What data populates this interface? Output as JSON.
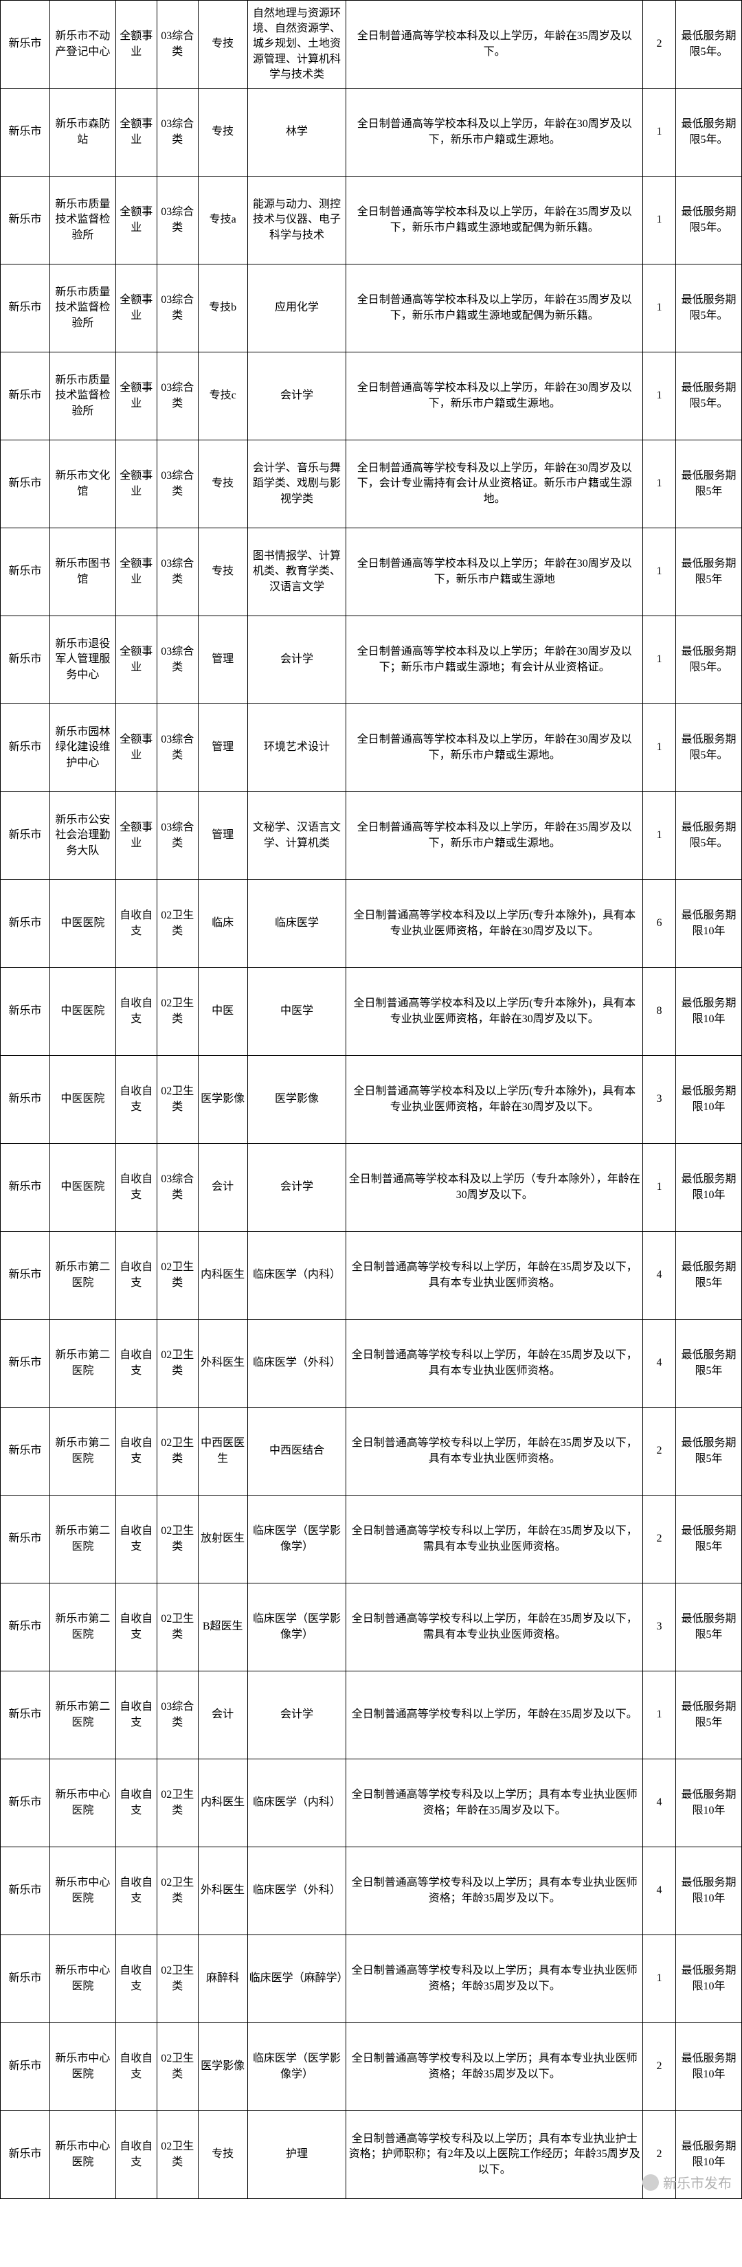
{
  "rows": [
    {
      "city": "新乐市",
      "org": "新乐市不动产登记中心",
      "type": "全额事业",
      "cat": "03综合类",
      "pos": "专技",
      "major": "自然地理与资源环境、自然资源学、城乡规划、土地资源管理、计算机科学与技术类",
      "req": "全日制普通高等学校本科及以上学历，年龄在35周岁及以下。",
      "num": "2",
      "note": "最低服务期限5年。"
    },
    {
      "city": "新乐市",
      "org": "新乐市森防站",
      "type": "全额事业",
      "cat": "03综合类",
      "pos": "专技",
      "major": "林学",
      "req": "全日制普通高等学校本科及以上学历，年龄在30周岁及以下，新乐市户籍或生源地。",
      "num": "1",
      "note": "最低服务期限5年。"
    },
    {
      "city": "新乐市",
      "org": "新乐市质量技术监督检验所",
      "type": "全额事业",
      "cat": "03综合类",
      "pos": "专技a",
      "major": "能源与动力、测控技术与仪器、电子科学与技术",
      "req": "全日制普通高等学校本科及以上学历，年龄在35周岁及以下，新乐市户籍或生源地或配偶为新乐籍。",
      "num": "1",
      "note": "最低服务期限5年。"
    },
    {
      "city": "新乐市",
      "org": "新乐市质量技术监督检验所",
      "type": "全额事业",
      "cat": "03综合类",
      "pos": "专技b",
      "major": "应用化学",
      "req": "全日制普通高等学校本科及以上学历，年龄在35周岁及以下，新乐市户籍或生源地或配偶为新乐籍。",
      "num": "1",
      "note": "最低服务期限5年。"
    },
    {
      "city": "新乐市",
      "org": "新乐市质量技术监督检验所",
      "type": "全额事业",
      "cat": "03综合类",
      "pos": "专技c",
      "major": "会计学",
      "req": "全日制普通高等学校本科及以上学历，年龄在30周岁及以下，新乐市户籍或生源地。",
      "num": "1",
      "note": "最低服务期限5年。"
    },
    {
      "city": "新乐市",
      "org": "新乐市文化馆",
      "type": "全额事业",
      "cat": "03综合类",
      "pos": "专技",
      "major": "会计学、音乐与舞蹈学类、戏剧与影视学类",
      "req": "全日制普通高等学校专科及以上学历，年龄在30周岁及以下，会计专业需持有会计从业资格证。新乐市户籍或生源地。",
      "num": "1",
      "note": "最低服务期限5年"
    },
    {
      "city": "新乐市",
      "org": "新乐市图书馆",
      "type": "全额事业",
      "cat": "03综合类",
      "pos": "专技",
      "major": "图书情报学、计算机类、教育学类、汉语言文学",
      "req": "全日制普通高等学校本科及以上学历；年龄在30周岁及以下，新乐市户籍或生源地",
      "num": "1",
      "note": "最低服务期限5年"
    },
    {
      "city": "新乐市",
      "org": "新乐市退役军人管理服务中心",
      "type": "全额事业",
      "cat": "03综合类",
      "pos": "管理",
      "major": "会计学",
      "req": "全日制普通高等学校本科及以上学历；年龄在30周岁及以下；新乐市户籍或生源地；有会计从业资格证。",
      "num": "1",
      "note": "最低服务期限5年。"
    },
    {
      "city": "新乐市",
      "org": "新乐市园林绿化建设维护中心",
      "type": "全额事业",
      "cat": "03综合类",
      "pos": "管理",
      "major": "环境艺术设计",
      "req": "全日制普通高等学校本科及以上学历，年龄在30周岁及以下，新乐市户籍或生源地。",
      "num": "1",
      "note": "最低服务期限5年。"
    },
    {
      "city": "新乐市",
      "org": "新乐市公安社会治理勤务大队",
      "type": "全额事业",
      "cat": "03综合类",
      "pos": "管理",
      "major": "文秘学、汉语言文学、计算机类",
      "req": "全日制普通高等学校本科及以上学历，年龄在35周岁及以下，新乐市户籍或生源地。",
      "num": "1",
      "note": "最低服务期限5年。"
    },
    {
      "city": "新乐市",
      "org": "中医医院",
      "type": "自收自支",
      "cat": "02卫生类",
      "pos": "临床",
      "major": "临床医学",
      "req": "全日制普通高等学校本科及以上学历(专升本除外)，具有本专业执业医师资格，年龄在30周岁及以下。",
      "num": "6",
      "note": "最低服务期限10年"
    },
    {
      "city": "新乐市",
      "org": "中医医院",
      "type": "自收自支",
      "cat": "02卫生类",
      "pos": "中医",
      "major": "中医学",
      "req": "全日制普通高等学校本科及以上学历(专升本除外)，具有本专业执业医师资格，年龄在30周岁及以下。",
      "num": "8",
      "note": "最低服务期限10年"
    },
    {
      "city": "新乐市",
      "org": "中医医院",
      "type": "自收自支",
      "cat": "02卫生类",
      "pos": "医学影像",
      "major": "医学影像",
      "req": "全日制普通高等学校本科及以上学历(专升本除外)，具有本专业执业医师资格，年龄在30周岁及以下。",
      "num": "3",
      "note": "最低服务期限10年"
    },
    {
      "city": "新乐市",
      "org": "中医医院",
      "type": "自收自支",
      "cat": "03综合类",
      "pos": "会计",
      "major": "会计学",
      "req": "全日制普通高等学校本科及以上学历（专升本除外），年龄在30周岁及以下。",
      "num": "1",
      "note": "最低服务期限10年"
    },
    {
      "city": "新乐市",
      "org": "新乐市第二医院",
      "type": "自收自支",
      "cat": "02卫生类",
      "pos": "内科医生",
      "major": "临床医学（内科）",
      "req": "全日制普通高等学校专科以上学历，年龄在35周岁及以下，具有本专业执业医师资格。",
      "num": "4",
      "note": "最低服务期限5年"
    },
    {
      "city": "新乐市",
      "org": "新乐市第二医院",
      "type": "自收自支",
      "cat": "02卫生类",
      "pos": "外科医生",
      "major": "临床医学（外科）",
      "req": "全日制普通高等学校专科以上学历，年龄在35周岁及以下，具有本专业执业医师资格。",
      "num": "4",
      "note": "最低服务期限5年"
    },
    {
      "city": "新乐市",
      "org": "新乐市第二医院",
      "type": "自收自支",
      "cat": "02卫生类",
      "pos": "中西医医生",
      "major": "中西医结合",
      "req": "全日制普通高等学校专科以上学历，年龄在35周岁及以下，具有本专业执业医师资格。",
      "num": "2",
      "note": "最低服务期限5年"
    },
    {
      "city": "新乐市",
      "org": "新乐市第二医院",
      "type": "自收自支",
      "cat": "02卫生类",
      "pos": "放射医生",
      "major": "临床医学（医学影像学）",
      "req": "全日制普通高等学校专科以上学历，年龄在35周岁及以下，需具有本专业执业医师资格。",
      "num": "2",
      "note": "最低服务期限5年"
    },
    {
      "city": "新乐市",
      "org": "新乐市第二医院",
      "type": "自收自支",
      "cat": "02卫生类",
      "pos": "B超医生",
      "major": "临床医学（医学影像学）",
      "req": "全日制普通高等学校专科以上学历，年龄在35周岁及以下，需具有本专业执业医师资格。",
      "num": "3",
      "note": "最低服务期限5年"
    },
    {
      "city": "新乐市",
      "org": "新乐市第二医院",
      "type": "自收自支",
      "cat": "03综合类",
      "pos": "会计",
      "major": "会计学",
      "req": "全日制普通高等学校专科以上学历，年龄在35周岁及以下。",
      "num": "1",
      "note": "最低服务期限5年"
    },
    {
      "city": "新乐市",
      "org": "新乐市中心医院",
      "type": "自收自支",
      "cat": "02卫生类",
      "pos": "内科医生",
      "major": "临床医学（内科）",
      "req": "全日制普通高等学校专科及以上学历；具有本专业执业医师资格；年龄在35周岁及以下。",
      "num": "4",
      "note": "最低服务期限10年"
    },
    {
      "city": "新乐市",
      "org": "新乐市中心医院",
      "type": "自收自支",
      "cat": "02卫生类",
      "pos": "外科医生",
      "major": "临床医学（外科）",
      "req": "全日制普通高等学校专科及以上学历；具有本专业执业医师资格；年龄35周岁及以下。",
      "num": "4",
      "note": "最低服务期限10年"
    },
    {
      "city": "新乐市",
      "org": "新乐市中心医院",
      "type": "自收自支",
      "cat": "02卫生类",
      "pos": "麻醉科",
      "major": "临床医学（麻醉学）",
      "req": "全日制普通高等学校专科及以上学历；具有本专业执业医师资格；年龄35周岁及以下。",
      "num": "1",
      "note": "最低服务期限10年"
    },
    {
      "city": "新乐市",
      "org": "新乐市中心医院",
      "type": "自收自支",
      "cat": "02卫生类",
      "pos": "医学影像",
      "major": "临床医学（医学影像学）",
      "req": "全日制普通高等学校专科及以上学历；具有本专业执业医师资格；年龄35周岁及以下。",
      "num": "2",
      "note": "最低服务期限10年"
    },
    {
      "city": "新乐市",
      "org": "新乐市中心医院",
      "type": "自收自支",
      "cat": "02卫生类",
      "pos": "专技",
      "major": "护理",
      "req": "全日制普通高等学校专科及以上学历；具有本专业执业护士资格；护师职称；有2年及以上医院工作经历；年龄35周岁及以下。",
      "num": "2",
      "note": "最低服务期限10年"
    }
  ],
  "watermark": "新乐市发布"
}
